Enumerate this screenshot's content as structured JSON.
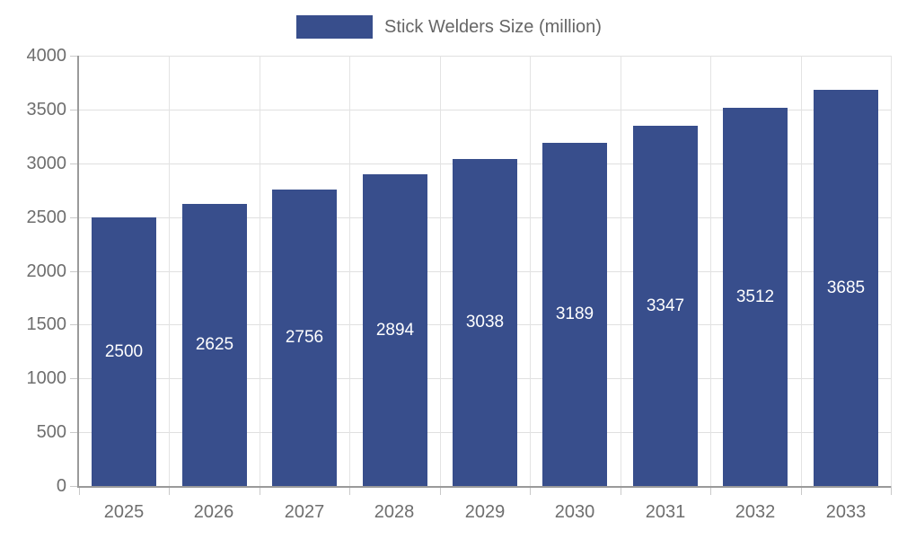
{
  "legend": {
    "label": "Stick Welders Size (million)"
  },
  "chart_data": {
    "type": "bar",
    "title": "",
    "series_name": "Stick Welders Size (million)",
    "categories": [
      "2025",
      "2026",
      "2027",
      "2028",
      "2029",
      "2030",
      "2031",
      "2032",
      "2033"
    ],
    "values": [
      2500,
      2625,
      2756,
      2894,
      3038,
      3189,
      3347,
      3512,
      3685
    ],
    "xlabel": "",
    "ylabel": "",
    "ylim": [
      0,
      4000
    ],
    "yticks": [
      0,
      500,
      1000,
      1500,
      2000,
      2500,
      3000,
      3500,
      4000
    ],
    "grid": true,
    "legend_position": "top",
    "bar_color": "#384E8C",
    "bar_label_color": "#FFFFFF"
  },
  "colors": {
    "accent": "#384E8C",
    "axis_line": "#9A9A9A",
    "grid_line": "#E0E0E0",
    "tick_text": "#6E6E6E",
    "legend_text": "#666666",
    "background": "#FFFFFF"
  }
}
